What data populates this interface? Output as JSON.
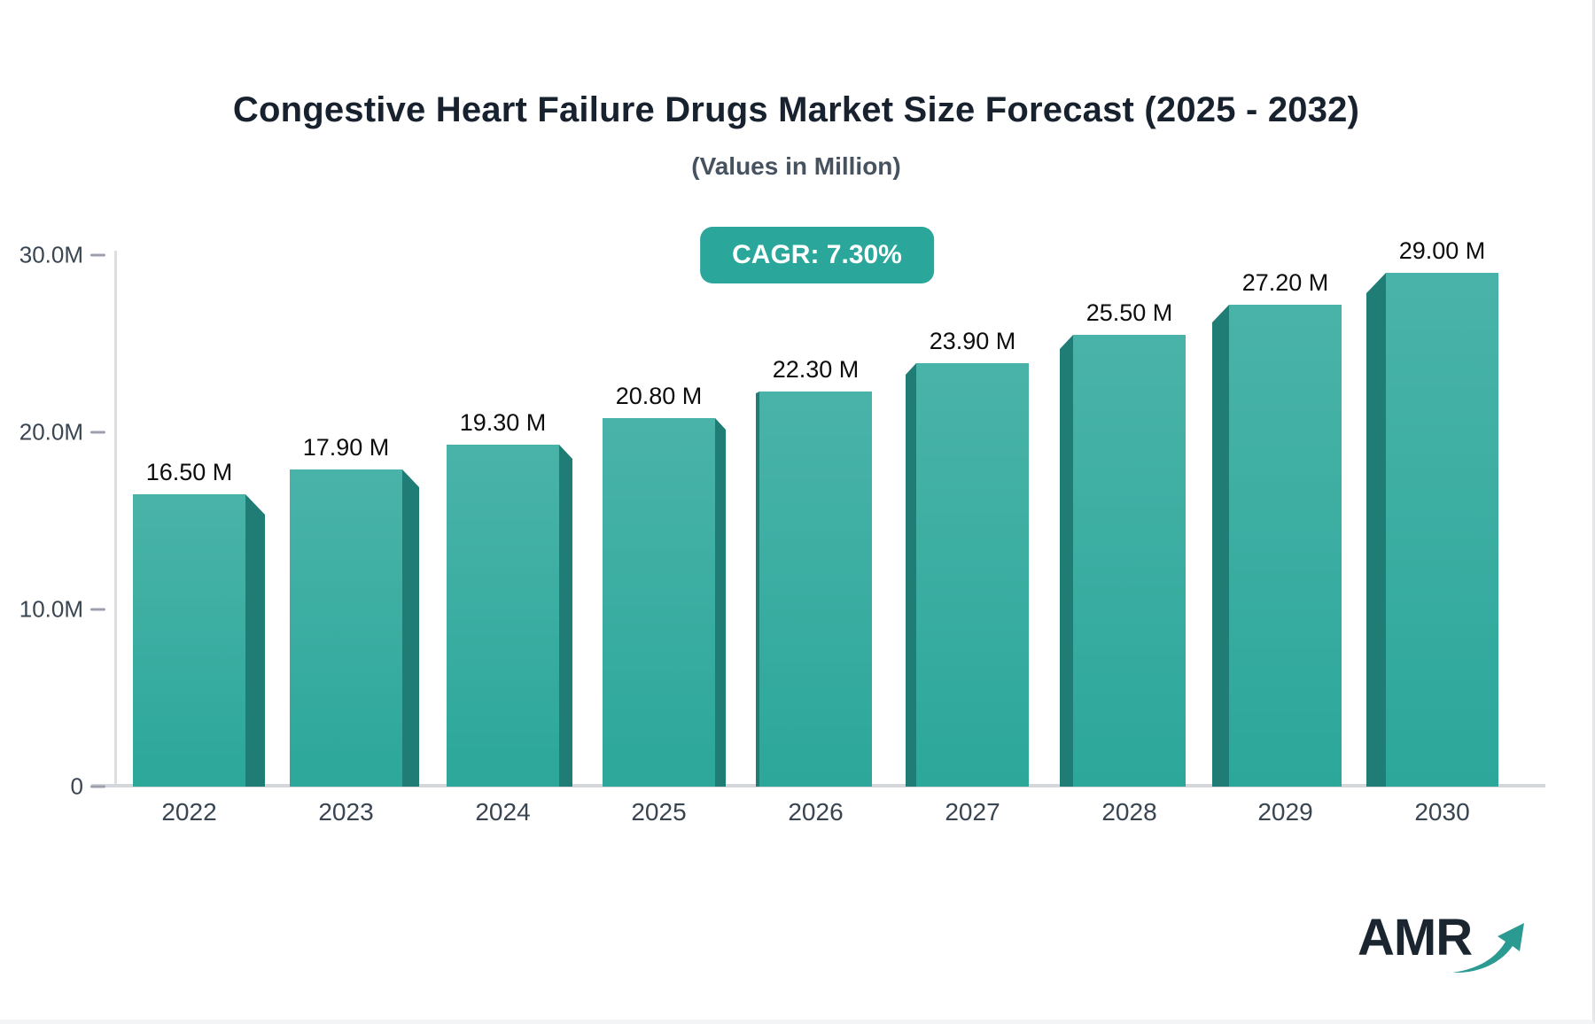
{
  "header": {
    "title": "Congestive Heart Failure Drugs Market Size Forecast (2025 - 2032)",
    "subtitle": "(Values in Million)",
    "cagr_badge": "CAGR: 7.30%"
  },
  "chart_data": {
    "type": "bar",
    "title": "Congestive Heart Failure Drugs Market Size Forecast (2025 - 2032)",
    "subtitle": "(Values in Million)",
    "cagr_pct": 7.3,
    "categories": [
      "2022",
      "2023",
      "2024",
      "2025",
      "2026",
      "2027",
      "2028",
      "2029",
      "2030"
    ],
    "values": [
      16.5,
      17.9,
      19.3,
      20.8,
      22.3,
      23.9,
      25.5,
      27.2,
      29.0
    ],
    "value_labels": [
      "16.50 M",
      "17.90 M",
      "19.30 M",
      "20.80 M",
      "22.30 M",
      "23.90 M",
      "25.50 M",
      "27.20 M",
      "29.00 M"
    ],
    "unit": "Million",
    "xlabel": "",
    "ylabel": "",
    "ylim": [
      0,
      30
    ],
    "yticks": [
      {
        "label": "30.0M",
        "value": 30
      },
      {
        "label": "20.0M",
        "value": 20
      },
      {
        "label": "10.0M",
        "value": 10
      },
      {
        "label": "0",
        "value": 0
      }
    ],
    "grid": false,
    "legend": false,
    "style": "3d-perspective-bars"
  },
  "colors": {
    "bar_gradient_top": "#4ab3a9",
    "bar_gradient_bottom": "#2ca79a",
    "bar_side": "#1f7d75",
    "badge_background": "#2aa69b",
    "badge_text": "#ffffff",
    "title_text": "#18222f",
    "axis_text": "#3a4552",
    "baseline": "#d3d6da",
    "logo_text": "#1a2530",
    "logo_arrow": "#2b9a91"
  },
  "logo": {
    "text": "AMR",
    "arrow_icon": "upward-trend-arrow"
  }
}
